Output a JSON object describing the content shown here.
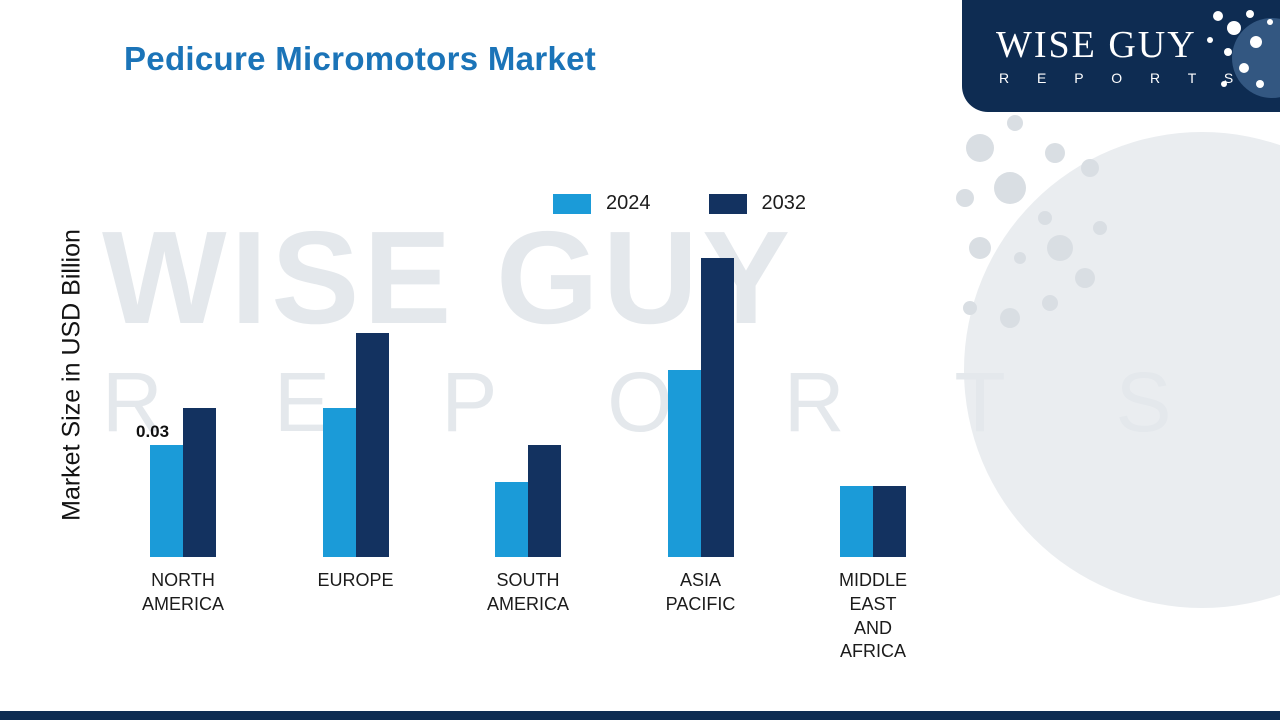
{
  "page": {
    "title": "Pedicure Micromotors Market",
    "title_color": "#1b74b8"
  },
  "logo": {
    "line1": "WISE GUY",
    "line2": "R E P O R T S",
    "bg_color": "#0e2c52"
  },
  "watermark": {
    "line1": "WISE GUY",
    "line2": "R E P O R T S"
  },
  "chart_data": {
    "type": "bar",
    "title": "Pedicure Micromotors Market",
    "ylabel": "Market Size in USD Billion",
    "xlabel": "",
    "categories": [
      "NORTH AMERICA",
      "EUROPE",
      "SOUTH AMERICA",
      "ASIA PACIFIC",
      "MIDDLE EAST AND AFRICA"
    ],
    "category_lines": [
      [
        "NORTH",
        "AMERICA"
      ],
      [
        "EUROPE"
      ],
      [
        "SOUTH",
        "AMERICA"
      ],
      [
        "ASIA",
        "PACIFIC"
      ],
      [
        "MIDDLE",
        "EAST",
        "AND",
        "AFRICA"
      ]
    ],
    "series": [
      {
        "name": "2024",
        "color": "#1b9bd8",
        "values": [
          0.03,
          0.04,
          0.02,
          0.05,
          0.019
        ]
      },
      {
        "name": "2032",
        "color": "#133260",
        "values": [
          0.04,
          0.06,
          0.03,
          0.08,
          0.019
        ]
      }
    ],
    "data_labels": [
      {
        "series": "2024",
        "category": "NORTH AMERICA",
        "text": "0.03"
      }
    ],
    "legend_position": "top",
    "grid": false,
    "ylim": [
      0,
      0.09
    ],
    "units": "USD Billion"
  }
}
